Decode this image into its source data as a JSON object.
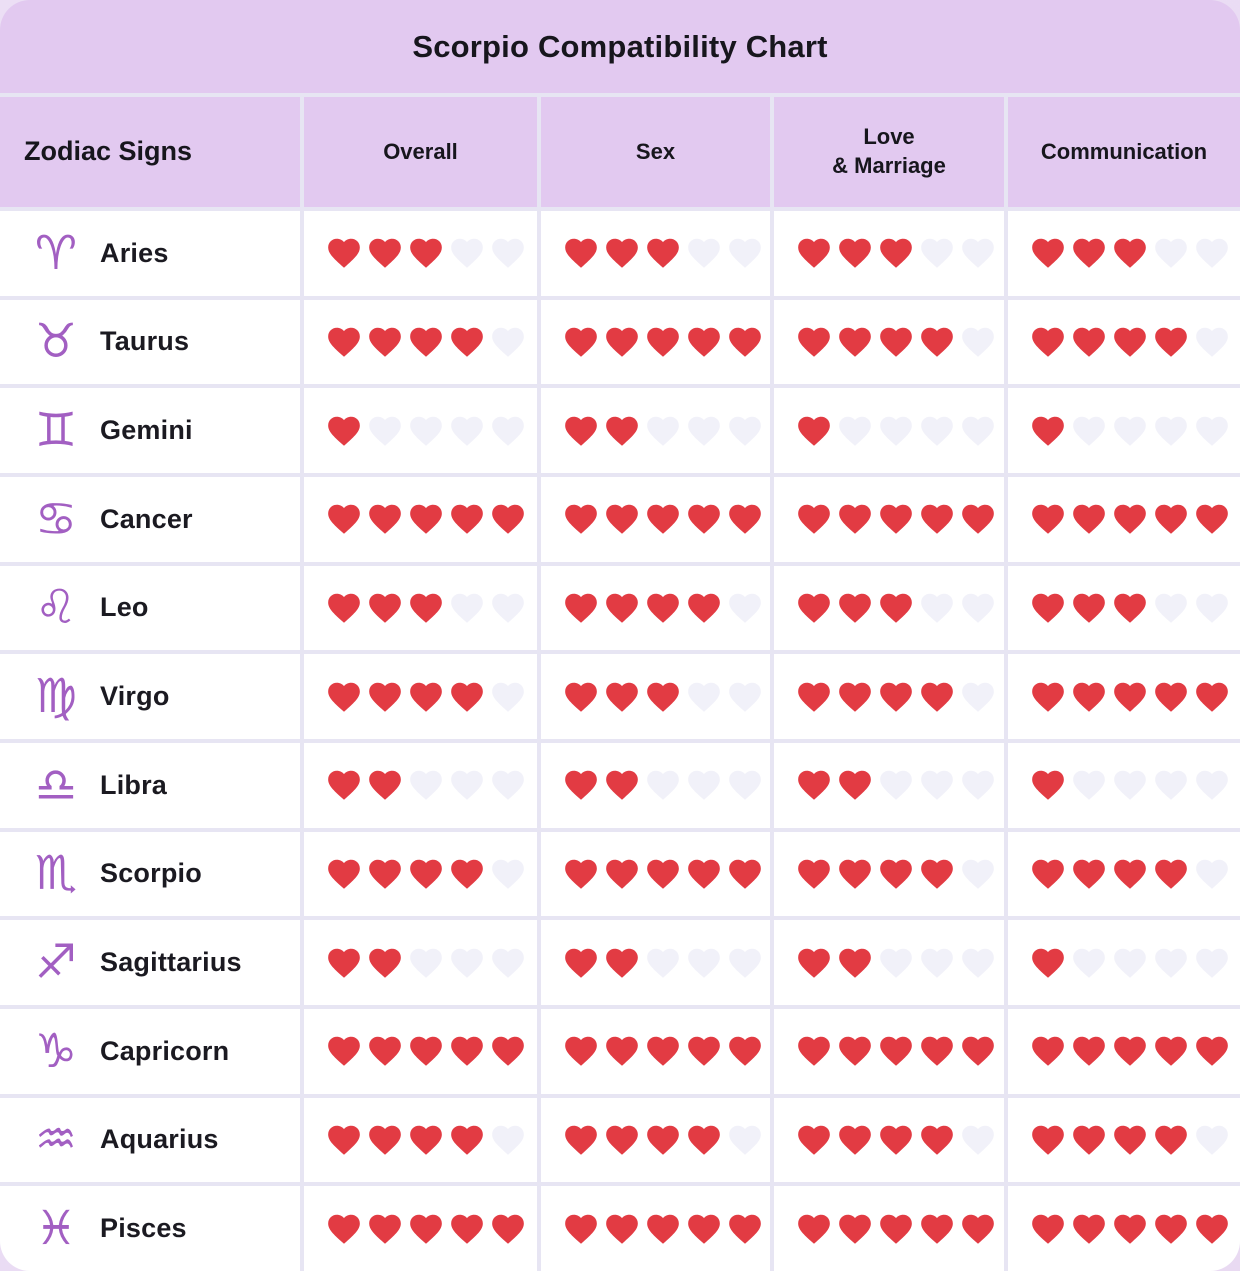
{
  "title": "Scorpio Compatibility Chart",
  "header": {
    "zodiac_label": "Zodiac Signs",
    "columns": [
      "Overall",
      "Sex",
      "Love\n& Marriage",
      "Communication"
    ]
  },
  "colors": {
    "banner_bg": "#E2C9F0",
    "cell_bg": "#FFFFFF",
    "grid_gap": "#E7E5F3",
    "page_bg": "#ECDFF5",
    "heart_filled": "#E23B43",
    "heart_empty": "#F1F1F9",
    "zodiac_icon": "#A25FC2",
    "text": "#17161D"
  },
  "chart_data": {
    "type": "table",
    "title": "Scorpio Compatibility Chart",
    "columns": [
      "Zodiac Signs",
      "Overall",
      "Sex",
      "Love & Marriage",
      "Communication"
    ],
    "rating_keys": [
      "overall",
      "sex",
      "love-marriage",
      "communication"
    ],
    "max_rating": 5,
    "rows": [
      {
        "sign": "Aries",
        "glyph": "♈",
        "values": [
          3,
          3,
          3,
          3
        ]
      },
      {
        "sign": "Taurus",
        "glyph": "♉",
        "values": [
          4,
          5,
          4,
          4
        ]
      },
      {
        "sign": "Gemini",
        "glyph": "♊",
        "values": [
          1,
          2,
          1,
          1
        ]
      },
      {
        "sign": "Cancer",
        "glyph": "♋",
        "values": [
          5,
          5,
          5,
          5
        ]
      },
      {
        "sign": "Leo",
        "glyph": "♌",
        "values": [
          3,
          4,
          3,
          3
        ]
      },
      {
        "sign": "Virgo",
        "glyph": "♍",
        "values": [
          4,
          3,
          4,
          5
        ]
      },
      {
        "sign": "Libra",
        "glyph": "♎",
        "values": [
          2,
          2,
          2,
          1
        ]
      },
      {
        "sign": "Scorpio",
        "glyph": "♏",
        "values": [
          4,
          5,
          4,
          4
        ]
      },
      {
        "sign": "Sagittarius",
        "glyph": "♐",
        "values": [
          2,
          2,
          2,
          1
        ]
      },
      {
        "sign": "Capricorn",
        "glyph": "♑",
        "values": [
          5,
          5,
          5,
          5
        ]
      },
      {
        "sign": "Aquarius",
        "glyph": "♒",
        "values": [
          4,
          4,
          4,
          4
        ]
      },
      {
        "sign": "Pisces",
        "glyph": "♓",
        "values": [
          5,
          5,
          5,
          5
        ]
      }
    ]
  }
}
